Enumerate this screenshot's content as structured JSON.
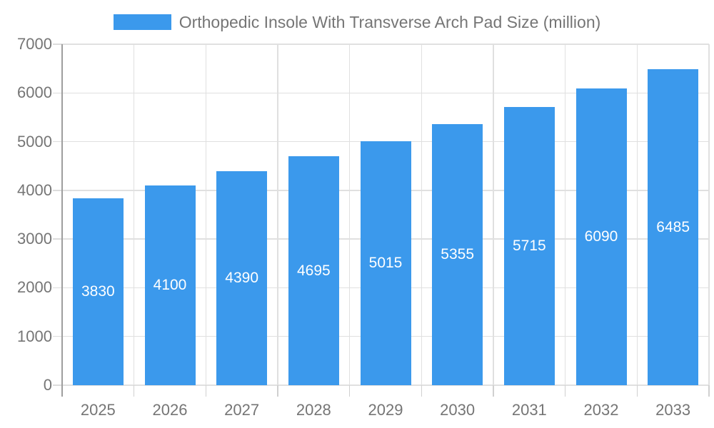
{
  "chart_data": {
    "type": "bar",
    "title": "Orthopedic Insole With Transverse Arch Pad Size (million)",
    "categories": [
      "2025",
      "2026",
      "2027",
      "2028",
      "2029",
      "2030",
      "2031",
      "2032",
      "2033"
    ],
    "values": [
      3830,
      4100,
      4390,
      4695,
      5015,
      5355,
      5715,
      6090,
      6485
    ],
    "series": [
      {
        "name": "Orthopedic Insole With Transverse Arch Pad Size (million)",
        "values": [
          3830,
          4100,
          4390,
          4695,
          5015,
          5355,
          5715,
          6090,
          6485
        ]
      }
    ],
    "xlabel": "",
    "ylabel": "",
    "ylim": [
      0,
      7000
    ],
    "ytick_step": 1000,
    "ytick_labels": [
      "0",
      "1000",
      "2000",
      "3000",
      "4000",
      "5000",
      "6000",
      "7000"
    ],
    "grid": true,
    "legend_position": "top",
    "value_labels_inside_bars": true
  },
  "colors": {
    "bar": "#3b99ec",
    "bar_value_text": "#ffffff",
    "axis_text": "#757575",
    "legend_text": "#757575",
    "gridline": "#e0e0e0",
    "axis_line": "#9e9e9e",
    "background": "#ffffff"
  },
  "legend": {
    "label": "Orthopedic Insole With Transverse Arch Pad Size (million)"
  }
}
